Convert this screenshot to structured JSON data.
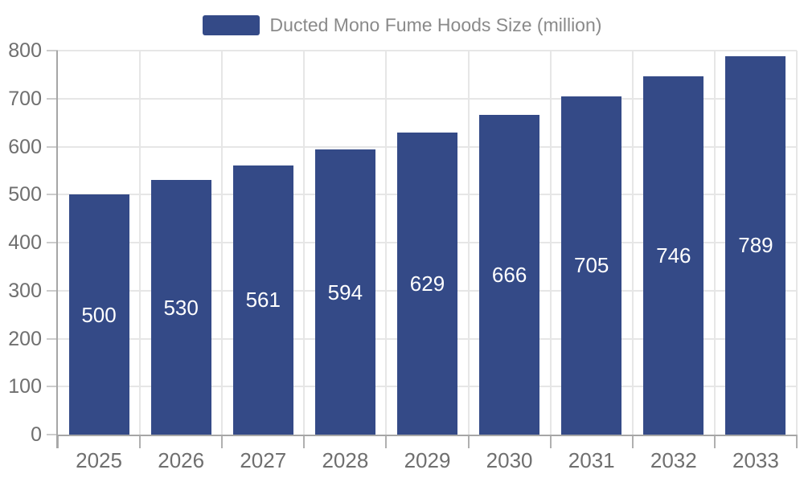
{
  "legend": {
    "label": "Ducted Mono Fume Hoods Size (million)"
  },
  "colors": {
    "bar": "#344a87",
    "grid": "#e6e6e6",
    "axis": "#a6a6a6",
    "x_tick": "#b0b0b0",
    "y_tick": "#cccccc",
    "tick_label": "#6f6f6f",
    "legend_label": "#8a8a8a",
    "value_label": "#ffffff",
    "background": "#ffffff"
  },
  "chart_data": {
    "type": "bar",
    "title": "Ducted Mono Fume Hoods Size (million)",
    "categories": [
      "2025",
      "2026",
      "2027",
      "2028",
      "2029",
      "2030",
      "2031",
      "2032",
      "2033"
    ],
    "values": [
      500,
      530,
      561,
      594,
      629,
      666,
      705,
      746,
      789
    ],
    "xlabel": "",
    "ylabel": "",
    "ylim": [
      0,
      800
    ],
    "ytick_step": 100,
    "ytick_labels": [
      "0",
      "100",
      "200",
      "300",
      "400",
      "500",
      "600",
      "700",
      "800"
    ],
    "grid": true,
    "value_labels_inside_bars": true,
    "legend_position": "top"
  }
}
